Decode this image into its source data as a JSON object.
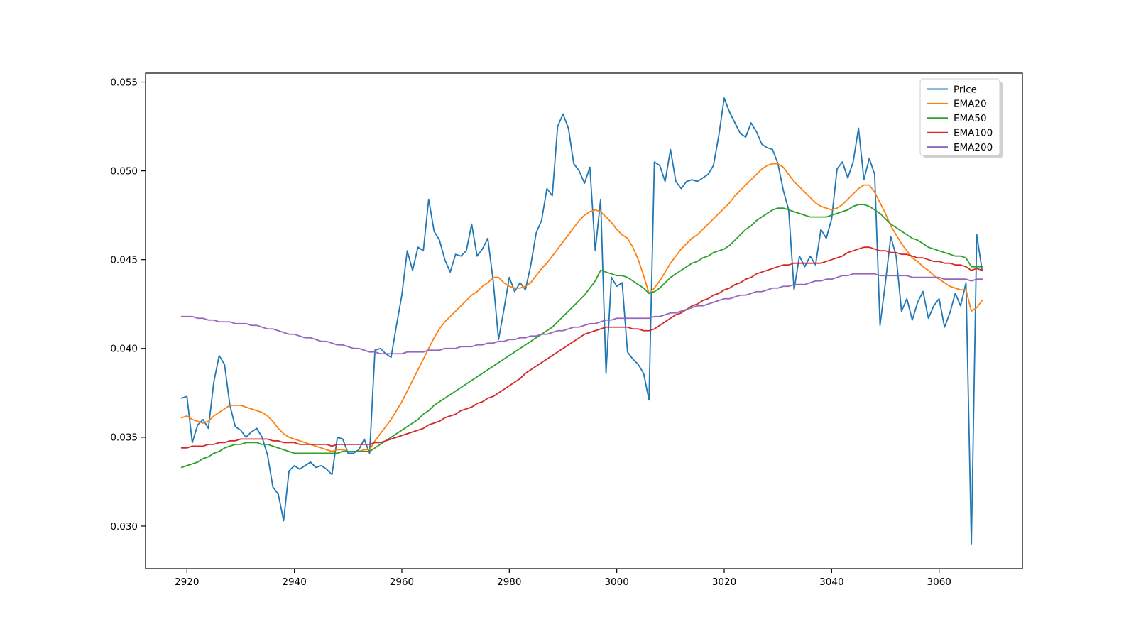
{
  "figure": {
    "background_color": "#ffffff",
    "axes_edge_color": "#000000",
    "tick_label_color": "#000000"
  },
  "chart_data": {
    "type": "line",
    "title": "",
    "xlabel": "",
    "ylabel": "",
    "grid": false,
    "x_start": 2919,
    "x_step": 1,
    "x_end": 3068,
    "xlim": [
      2912.3,
      3075.5
    ],
    "ylim": [
      0.0276,
      0.0555
    ],
    "x_ticks": [
      2920,
      2940,
      2960,
      2980,
      3000,
      3020,
      3040,
      3060
    ],
    "x_tick_labels": [
      "2920",
      "2940",
      "2960",
      "2980",
      "3000",
      "3020",
      "3040",
      "3060"
    ],
    "y_ticks": [
      0.03,
      0.035,
      0.04,
      0.045,
      0.05,
      0.055
    ],
    "y_tick_labels": [
      "0.030",
      "0.035",
      "0.040",
      "0.045",
      "0.050",
      "0.055"
    ],
    "legend": {
      "position": "upper right",
      "entries": [
        "Price",
        "EMA20",
        "EMA50",
        "EMA100",
        "EMA200"
      ]
    },
    "series": [
      {
        "name": "Price",
        "color": "#1f77b4",
        "values": [
          0.0372,
          0.0373,
          0.0347,
          0.0357,
          0.036,
          0.0355,
          0.0381,
          0.0396,
          0.0391,
          0.0368,
          0.0356,
          0.0354,
          0.035,
          0.0353,
          0.0355,
          0.035,
          0.034,
          0.0322,
          0.0318,
          0.0303,
          0.0331,
          0.0334,
          0.0332,
          0.0334,
          0.0336,
          0.0333,
          0.0334,
          0.0332,
          0.0329,
          0.035,
          0.0349,
          0.0341,
          0.0341,
          0.0343,
          0.0349,
          0.0341,
          0.0399,
          0.04,
          0.0397,
          0.0395,
          0.0413,
          0.043,
          0.0455,
          0.0444,
          0.0457,
          0.0455,
          0.0484,
          0.0466,
          0.0461,
          0.045,
          0.0443,
          0.0453,
          0.0452,
          0.0455,
          0.047,
          0.0452,
          0.0456,
          0.0462,
          0.0438,
          0.0405,
          0.0422,
          0.044,
          0.0432,
          0.0437,
          0.0433,
          0.0447,
          0.0465,
          0.0472,
          0.049,
          0.0486,
          0.0525,
          0.0532,
          0.0524,
          0.0504,
          0.05,
          0.0493,
          0.0502,
          0.0455,
          0.0484,
          0.0386,
          0.044,
          0.0435,
          0.0437,
          0.0398,
          0.0394,
          0.0391,
          0.0386,
          0.0371,
          0.0505,
          0.0503,
          0.0494,
          0.0512,
          0.0494,
          0.049,
          0.0494,
          0.0495,
          0.0494,
          0.0496,
          0.0498,
          0.0503,
          0.052,
          0.0541,
          0.0533,
          0.0527,
          0.0521,
          0.0519,
          0.0527,
          0.0522,
          0.0515,
          0.0513,
          0.0512,
          0.0504,
          0.0489,
          0.0478,
          0.0433,
          0.0452,
          0.0446,
          0.0452,
          0.0447,
          0.0467,
          0.0462,
          0.0473,
          0.0501,
          0.0505,
          0.0496,
          0.0505,
          0.0524,
          0.0495,
          0.0507,
          0.0498,
          0.0413,
          0.0437,
          0.0463,
          0.0452,
          0.0421,
          0.0428,
          0.0416,
          0.0426,
          0.0432,
          0.0417,
          0.0424,
          0.0428,
          0.0412,
          0.042,
          0.0431,
          0.0424,
          0.0437,
          0.029,
          0.0464,
          0.0444
        ]
      },
      {
        "name": "EMA20",
        "color": "#ff7f0e",
        "values": [
          0.0361,
          0.0362,
          0.036,
          0.0359,
          0.0358,
          0.0359,
          0.0362,
          0.0364,
          0.0366,
          0.0368,
          0.0368,
          0.0368,
          0.0367,
          0.0366,
          0.0365,
          0.0364,
          0.0362,
          0.0359,
          0.0355,
          0.0352,
          0.035,
          0.0349,
          0.0348,
          0.0347,
          0.0346,
          0.0345,
          0.0344,
          0.0343,
          0.0342,
          0.0343,
          0.0343,
          0.0342,
          0.0342,
          0.0342,
          0.0343,
          0.0343,
          0.0348,
          0.0352,
          0.0356,
          0.036,
          0.0365,
          0.037,
          0.0376,
          0.0382,
          0.0388,
          0.0394,
          0.04,
          0.0406,
          0.0411,
          0.0415,
          0.0418,
          0.0421,
          0.0424,
          0.0427,
          0.043,
          0.0432,
          0.0435,
          0.0437,
          0.044,
          0.044,
          0.0437,
          0.0435,
          0.0434,
          0.0434,
          0.0435,
          0.0437,
          0.0441,
          0.0445,
          0.0448,
          0.0452,
          0.0456,
          0.046,
          0.0464,
          0.0468,
          0.0472,
          0.0475,
          0.0477,
          0.0478,
          0.0477,
          0.0474,
          0.0471,
          0.0467,
          0.0464,
          0.0462,
          0.0457,
          0.045,
          0.0441,
          0.0431,
          0.0434,
          0.0438,
          0.0443,
          0.0448,
          0.0452,
          0.0456,
          0.0459,
          0.0462,
          0.0464,
          0.0467,
          0.047,
          0.0473,
          0.0476,
          0.0479,
          0.0482,
          0.0486,
          0.0489,
          0.0492,
          0.0495,
          0.0498,
          0.0501,
          0.0503,
          0.0504,
          0.0504,
          0.0502,
          0.0498,
          0.0494,
          0.0491,
          0.0488,
          0.0485,
          0.0482,
          0.048,
          0.0479,
          0.0478,
          0.0479,
          0.0481,
          0.0484,
          0.0487,
          0.049,
          0.0492,
          0.0492,
          0.0488,
          0.0482,
          0.0476,
          0.0469,
          0.0464,
          0.0459,
          0.0455,
          0.0451,
          0.0449,
          0.0446,
          0.0444,
          0.0441,
          0.0439,
          0.0437,
          0.0435,
          0.0434,
          0.0433,
          0.0433,
          0.0421,
          0.0423,
          0.0427
        ]
      },
      {
        "name": "EMA50",
        "color": "#2ca02c",
        "values": [
          0.0333,
          0.0334,
          0.0335,
          0.0336,
          0.0338,
          0.0339,
          0.0341,
          0.0342,
          0.0344,
          0.0345,
          0.0346,
          0.0346,
          0.0347,
          0.0347,
          0.0347,
          0.0346,
          0.0346,
          0.0345,
          0.0344,
          0.0343,
          0.0342,
          0.0341,
          0.0341,
          0.0341,
          0.0341,
          0.0341,
          0.0341,
          0.0341,
          0.0341,
          0.0341,
          0.0342,
          0.0342,
          0.0342,
          0.0342,
          0.0342,
          0.0342,
          0.0344,
          0.0346,
          0.0348,
          0.035,
          0.0352,
          0.0354,
          0.0356,
          0.0358,
          0.036,
          0.0363,
          0.0365,
          0.0368,
          0.037,
          0.0372,
          0.0374,
          0.0376,
          0.0378,
          0.038,
          0.0382,
          0.0384,
          0.0386,
          0.0388,
          0.039,
          0.0392,
          0.0394,
          0.0396,
          0.0398,
          0.04,
          0.0402,
          0.0404,
          0.0406,
          0.0408,
          0.041,
          0.0412,
          0.0415,
          0.0418,
          0.0421,
          0.0424,
          0.0427,
          0.043,
          0.0434,
          0.0438,
          0.0444,
          0.0443,
          0.0442,
          0.0441,
          0.0441,
          0.044,
          0.0438,
          0.0436,
          0.0434,
          0.0431,
          0.0432,
          0.0434,
          0.0437,
          0.044,
          0.0442,
          0.0444,
          0.0446,
          0.0448,
          0.0449,
          0.0451,
          0.0452,
          0.0454,
          0.0455,
          0.0456,
          0.0458,
          0.0461,
          0.0464,
          0.0467,
          0.0469,
          0.0472,
          0.0474,
          0.0476,
          0.0478,
          0.0479,
          0.0479,
          0.0478,
          0.0477,
          0.0476,
          0.0475,
          0.0474,
          0.0474,
          0.0474,
          0.0474,
          0.0475,
          0.0476,
          0.0477,
          0.0478,
          0.048,
          0.0481,
          0.0481,
          0.048,
          0.0478,
          0.0476,
          0.0473,
          0.047,
          0.0468,
          0.0466,
          0.0464,
          0.0462,
          0.0461,
          0.0459,
          0.0457,
          0.0456,
          0.0455,
          0.0454,
          0.0453,
          0.0452,
          0.0452,
          0.0451,
          0.0446,
          0.0446,
          0.0446
        ]
      },
      {
        "name": "EMA100",
        "color": "#d62728",
        "values": [
          0.0344,
          0.0344,
          0.0345,
          0.0345,
          0.0345,
          0.0346,
          0.0346,
          0.0347,
          0.0347,
          0.0348,
          0.0348,
          0.0349,
          0.0349,
          0.0349,
          0.0349,
          0.0349,
          0.0349,
          0.0348,
          0.0348,
          0.0347,
          0.0347,
          0.0347,
          0.0346,
          0.0346,
          0.0346,
          0.0346,
          0.0346,
          0.0346,
          0.0345,
          0.0346,
          0.0346,
          0.0346,
          0.0346,
          0.0346,
          0.0346,
          0.0346,
          0.0347,
          0.0347,
          0.0348,
          0.0349,
          0.035,
          0.0351,
          0.0352,
          0.0353,
          0.0354,
          0.0355,
          0.0357,
          0.0358,
          0.0359,
          0.0361,
          0.0362,
          0.0363,
          0.0365,
          0.0366,
          0.0367,
          0.0369,
          0.037,
          0.0372,
          0.0373,
          0.0375,
          0.0377,
          0.0379,
          0.0381,
          0.0383,
          0.0386,
          0.0388,
          0.039,
          0.0392,
          0.0394,
          0.0396,
          0.0398,
          0.04,
          0.0402,
          0.0404,
          0.0406,
          0.0408,
          0.0409,
          0.041,
          0.0411,
          0.0412,
          0.0412,
          0.0412,
          0.0412,
          0.0412,
          0.0411,
          0.0411,
          0.041,
          0.041,
          0.0411,
          0.0413,
          0.0415,
          0.0417,
          0.0419,
          0.042,
          0.0422,
          0.0424,
          0.0425,
          0.0427,
          0.0428,
          0.043,
          0.0431,
          0.0433,
          0.0434,
          0.0436,
          0.0437,
          0.0439,
          0.044,
          0.0442,
          0.0443,
          0.0444,
          0.0445,
          0.0446,
          0.0447,
          0.0447,
          0.0448,
          0.0448,
          0.0448,
          0.0448,
          0.0448,
          0.0448,
          0.0449,
          0.045,
          0.0451,
          0.0452,
          0.0454,
          0.0455,
          0.0456,
          0.0457,
          0.0457,
          0.0456,
          0.0455,
          0.0455,
          0.0454,
          0.0454,
          0.0453,
          0.0453,
          0.0452,
          0.0451,
          0.0451,
          0.045,
          0.0449,
          0.0449,
          0.0448,
          0.0448,
          0.0447,
          0.0447,
          0.0446,
          0.0444,
          0.0445,
          0.0444
        ]
      },
      {
        "name": "EMA200",
        "color": "#9467bd",
        "values": [
          0.0418,
          0.0418,
          0.0418,
          0.0417,
          0.0417,
          0.0416,
          0.0416,
          0.0415,
          0.0415,
          0.0415,
          0.0414,
          0.0414,
          0.0414,
          0.0413,
          0.0413,
          0.0412,
          0.0411,
          0.0411,
          0.041,
          0.0409,
          0.0408,
          0.0408,
          0.0407,
          0.0406,
          0.0406,
          0.0405,
          0.0404,
          0.0404,
          0.0403,
          0.0402,
          0.0402,
          0.0401,
          0.04,
          0.04,
          0.0399,
          0.0398,
          0.0398,
          0.0397,
          0.0397,
          0.0397,
          0.0397,
          0.0397,
          0.0398,
          0.0398,
          0.0398,
          0.0398,
          0.0399,
          0.0399,
          0.0399,
          0.04,
          0.04,
          0.04,
          0.0401,
          0.0401,
          0.0401,
          0.0402,
          0.0402,
          0.0403,
          0.0403,
          0.0404,
          0.0404,
          0.0405,
          0.0405,
          0.0406,
          0.0406,
          0.0407,
          0.0407,
          0.0408,
          0.0408,
          0.0409,
          0.041,
          0.041,
          0.0411,
          0.0412,
          0.0412,
          0.0413,
          0.0414,
          0.0414,
          0.0415,
          0.0416,
          0.0416,
          0.0417,
          0.0417,
          0.0417,
          0.0417,
          0.0417,
          0.0417,
          0.0417,
          0.0418,
          0.0418,
          0.0419,
          0.042,
          0.042,
          0.0421,
          0.0422,
          0.0423,
          0.0424,
          0.0424,
          0.0425,
          0.0426,
          0.0427,
          0.0428,
          0.0428,
          0.0429,
          0.043,
          0.043,
          0.0431,
          0.0432,
          0.0432,
          0.0433,
          0.0434,
          0.0434,
          0.0435,
          0.0435,
          0.0436,
          0.0436,
          0.0436,
          0.0437,
          0.0438,
          0.0438,
          0.0439,
          0.0439,
          0.044,
          0.0441,
          0.0441,
          0.0442,
          0.0442,
          0.0442,
          0.0442,
          0.0442,
          0.0441,
          0.0441,
          0.0441,
          0.0441,
          0.0441,
          0.0441,
          0.044,
          0.044,
          0.044,
          0.044,
          0.044,
          0.044,
          0.0439,
          0.0439,
          0.0439,
          0.0439,
          0.0439,
          0.0438,
          0.0439,
          0.0439
        ]
      }
    ]
  }
}
